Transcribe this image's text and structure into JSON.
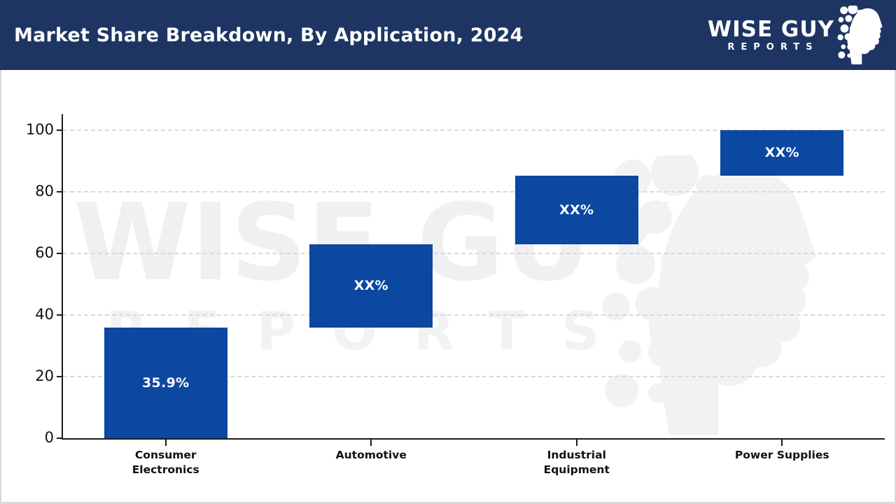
{
  "header": {
    "title": "Market Share Breakdown, By Application, 2024",
    "logo": {
      "line1": "WISE GUY",
      "line2": "REPORTS"
    }
  },
  "watermark": {
    "line1": "WISE GUY",
    "line2": "REPORTS"
  },
  "colors": {
    "header_bg": "#1e3563",
    "bar": "#0c47a1",
    "gridline": "#d9d9d9",
    "axis": "#1a1a1a",
    "bar_label": "#ffffff",
    "watermark": "#f0f0f0"
  },
  "chart_data": {
    "type": "bar",
    "subtype": "waterfall-floating-bars",
    "title": "Market Share Breakdown, By Application, 2024",
    "categories": [
      "Consumer Electronics",
      "Automotive",
      "Industrial Equipment",
      "Power Supplies"
    ],
    "segments": [
      {
        "category": "Consumer Electronics",
        "start": 0,
        "end": 35.9,
        "label": "35.9%"
      },
      {
        "category": "Automotive",
        "start": 35.9,
        "end": 63,
        "label": "XX%"
      },
      {
        "category": "Industrial Equipment",
        "start": 63,
        "end": 85.3,
        "label": "XX%"
      },
      {
        "category": "Power Supplies",
        "start": 85.3,
        "end": 100,
        "label": "XX%"
      }
    ],
    "xlabel": "",
    "ylabel": "",
    "yticks": [
      0,
      20,
      40,
      60,
      80,
      100
    ],
    "ylim": [
      0,
      105
    ],
    "grid": "horizontal-dashed",
    "legend": "none"
  }
}
